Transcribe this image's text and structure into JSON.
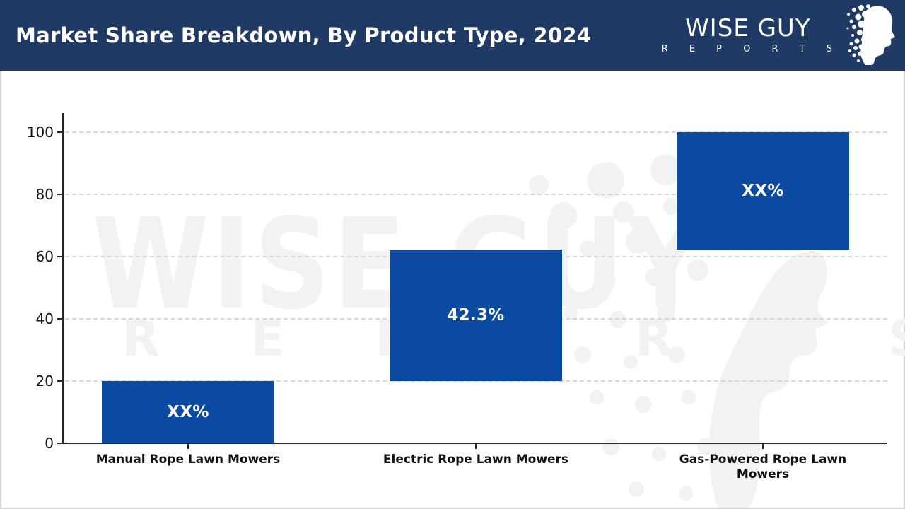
{
  "header": {
    "title": "Market Share Breakdown, By Product Type, 2024",
    "logo": {
      "line1": "WISE GUY",
      "line2": "R E P O R T S"
    }
  },
  "watermark": {
    "line1": "WISE GUY",
    "line2": "R E P O R T S"
  },
  "chart_data": {
    "type": "bar",
    "subtype": "waterfall",
    "title": "Market Share Breakdown, By Product Type, 2024",
    "categories": [
      "Manual Rope Lawn Mowers",
      "Electric Rope Lawn Mowers",
      "Gas-Powered Rope Lawn Mowers"
    ],
    "series": [
      {
        "name": "Market Share",
        "segments": [
          {
            "category": "Manual Rope Lawn Mowers",
            "start": 0,
            "end": 20,
            "label": "XX%"
          },
          {
            "category": "Electric Rope Lawn Mowers",
            "start": 20,
            "end": 62.3,
            "label": "42.3%"
          },
          {
            "category": "Gas-Powered Rope Lawn Mowers",
            "start": 62.3,
            "end": 100,
            "label": "XX%"
          }
        ]
      }
    ],
    "xlabel": "",
    "ylabel": "",
    "ylim": [
      0,
      100
    ],
    "yticks": [
      0,
      20,
      40,
      60,
      80,
      100
    ],
    "grid": "horizontal-dashed",
    "legend": "none",
    "bar_color": "#0c4aa2",
    "bar_label_color": "#ffffff"
  },
  "colors": {
    "header_bg": "#203a66",
    "bar": "#0c4aa2",
    "axis": "#262626",
    "grid": "#d7d7d7",
    "watermark": "#f2f2f5",
    "page_border": "#d9d9d9",
    "title_text": "#ffffff",
    "tick_text": "#111111"
  }
}
